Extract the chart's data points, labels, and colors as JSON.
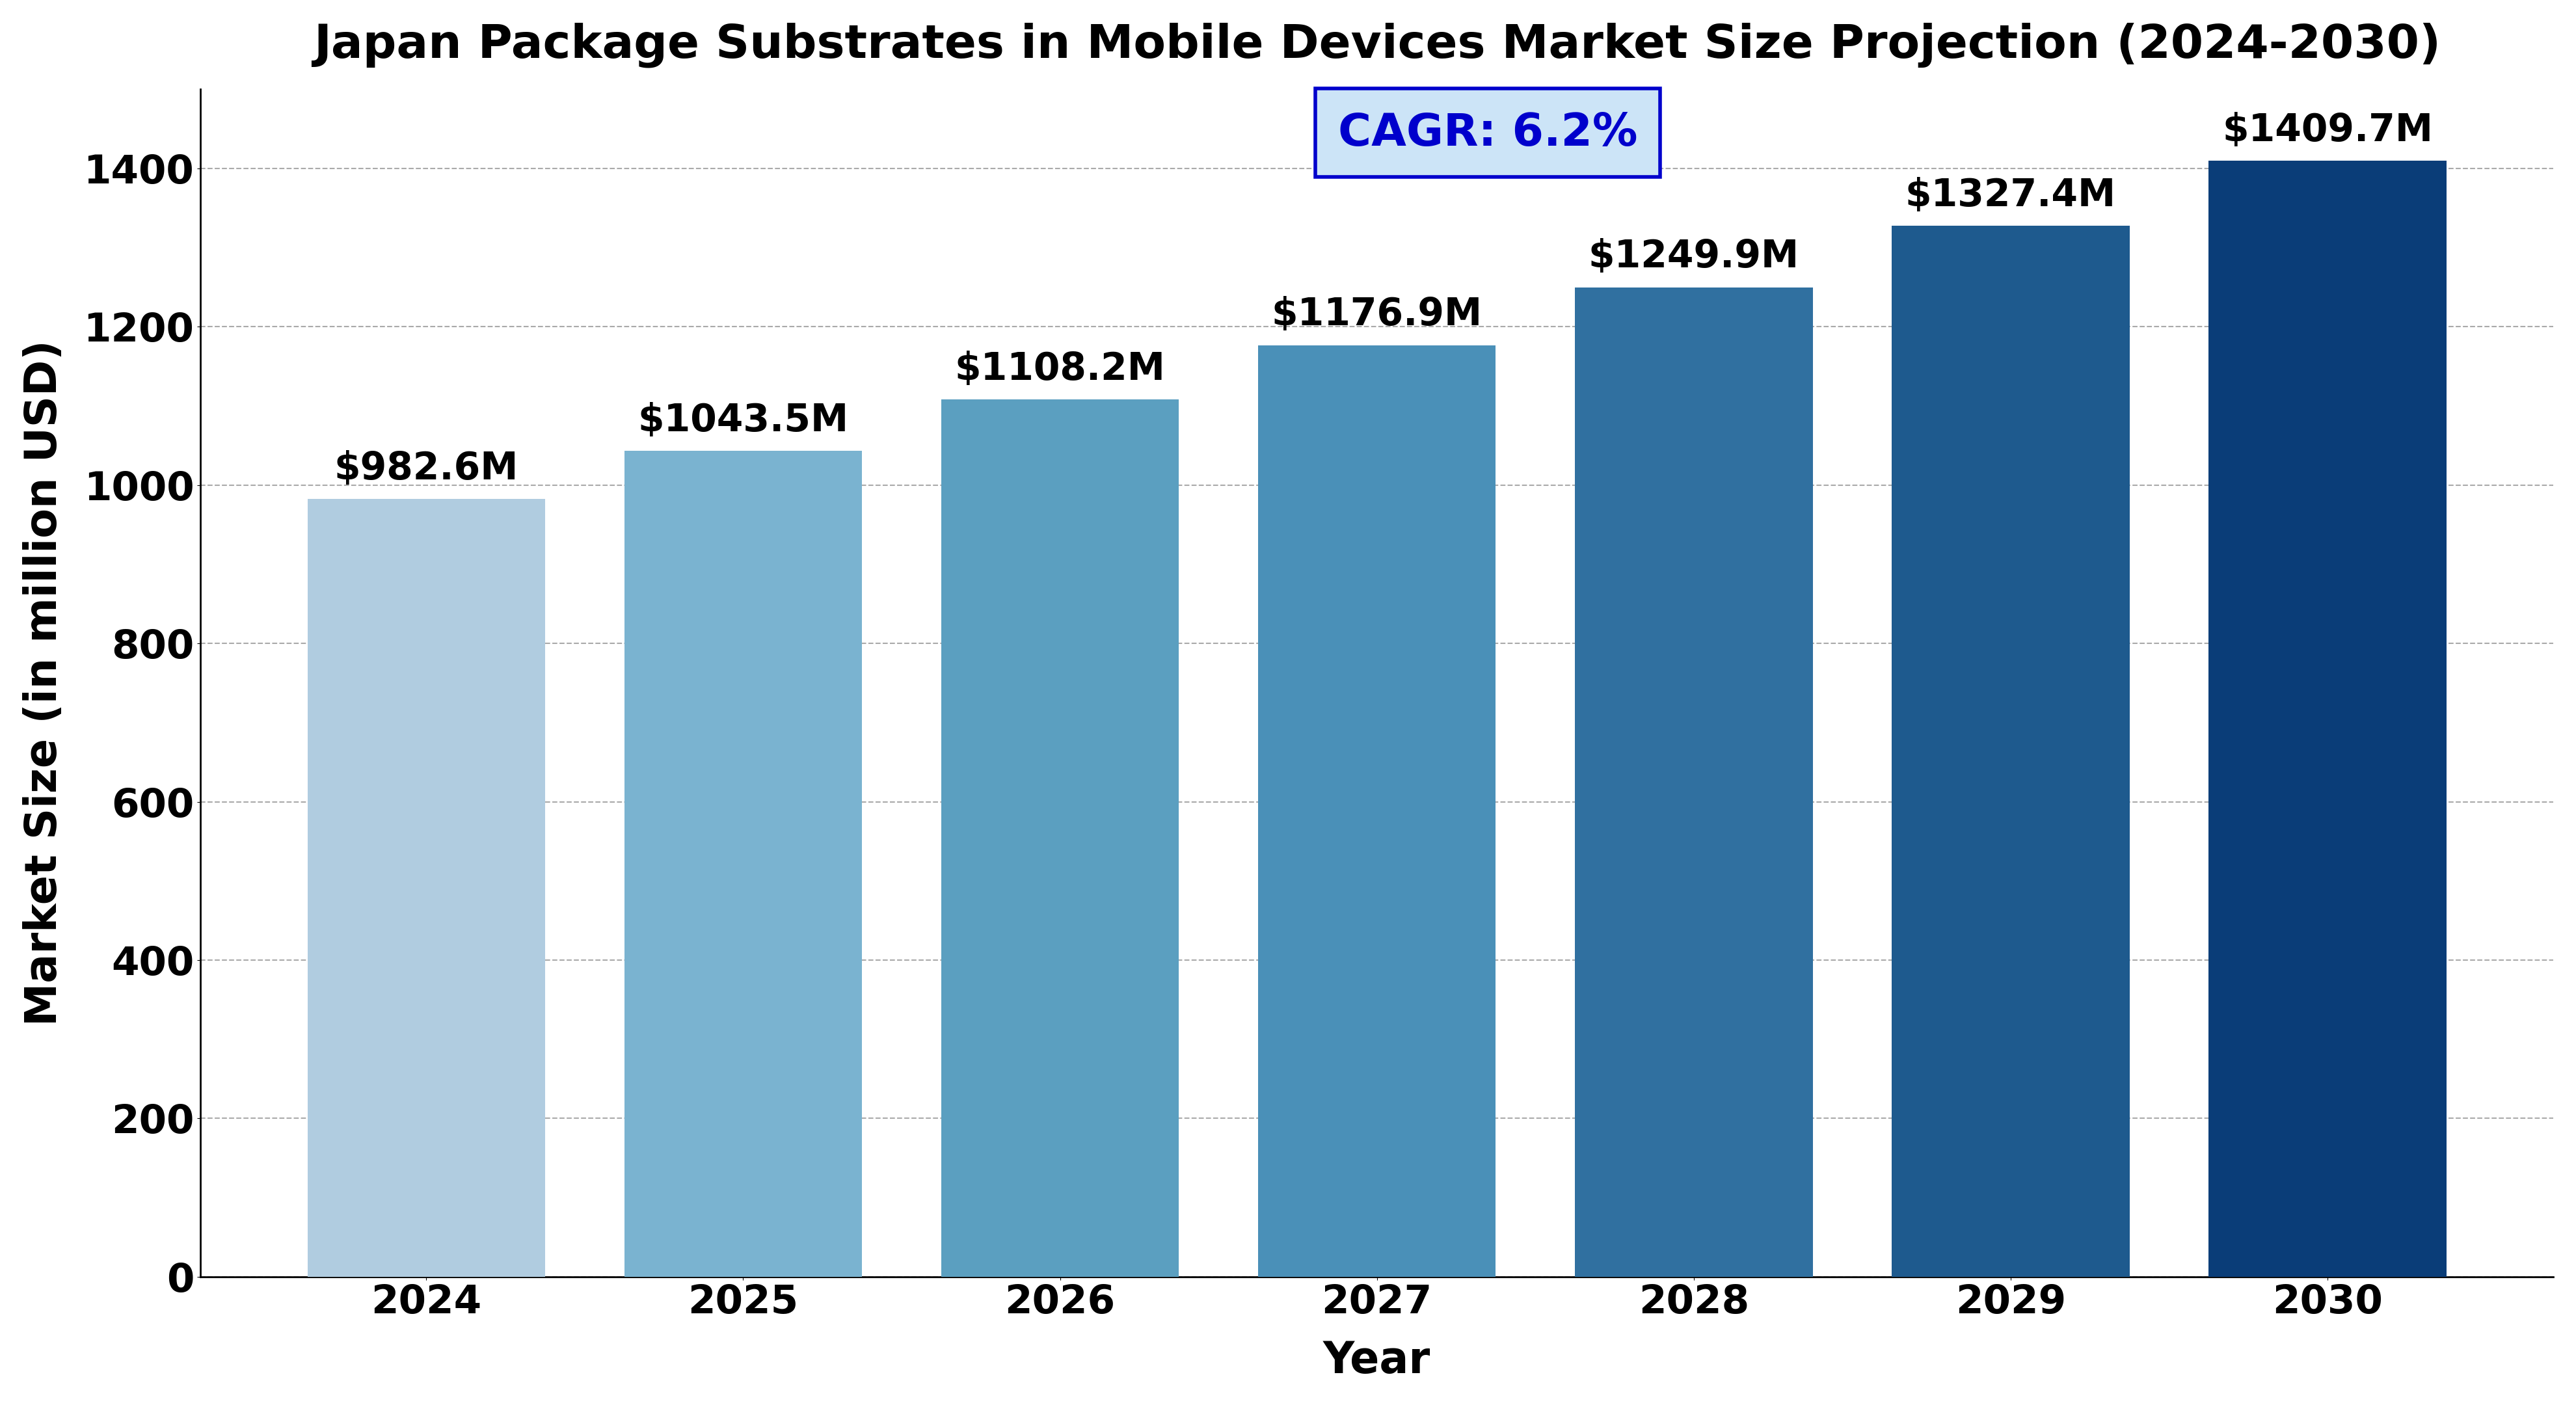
{
  "title": "Japan Package Substrates in Mobile Devices Market Size Projection (2024-2030)",
  "xlabel": "Year",
  "ylabel": "Market Size (in million USD)",
  "years": [
    "2024",
    "2025",
    "2026",
    "2027",
    "2028",
    "2029",
    "2030"
  ],
  "values": [
    982.6,
    1043.5,
    1108.2,
    1176.9,
    1249.9,
    1327.4,
    1409.7
  ],
  "labels": [
    "$982.6M",
    "$1043.5M",
    "$1108.2M",
    "$1176.9M",
    "$1249.9M",
    "$1327.4M",
    "$1409.7M"
  ],
  "bar_colors": [
    "#b0cce0",
    "#7ab3d0",
    "#5b9fc0",
    "#4a90b8",
    "#3070a0",
    "#1e5a8e",
    "#0a3d78"
  ],
  "cagr_text": "CAGR: 6.2%",
  "cagr_box_facecolor": "#cce4f7",
  "cagr_box_edgecolor": "#0000cc",
  "ylim": [
    0,
    1500
  ],
  "yticks": [
    0,
    200,
    400,
    600,
    800,
    1000,
    1200,
    1400
  ],
  "background_color": "#ffffff",
  "grid_color": "#aaaaaa",
  "title_fontsize": 52,
  "axis_label_fontsize": 48,
  "tick_fontsize": 44,
  "bar_label_fontsize": 42,
  "cagr_fontsize": 50,
  "bar_width": 0.75
}
